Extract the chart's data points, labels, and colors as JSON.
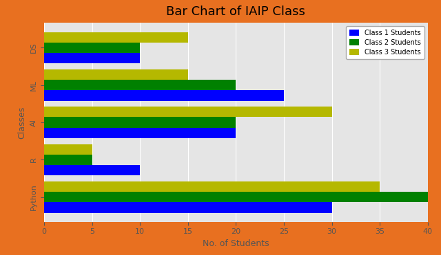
{
  "title": "Bar Chart of IAIP Class",
  "xlabel": "No. of Students",
  "ylabel": "Classes",
  "categories": [
    "Python",
    "R",
    "AI",
    "ML",
    "DS"
  ],
  "class1": [
    30,
    10,
    20,
    25,
    10
  ],
  "class2": [
    40,
    5,
    20,
    20,
    10
  ],
  "class3": [
    35,
    5,
    30,
    15,
    15
  ],
  "legend_labels": [
    "Class 1 Students",
    "Class 2 Students",
    "Class 3 Students"
  ],
  "colors": [
    "blue",
    "green",
    "#b5b800"
  ],
  "bar_height": 0.28,
  "xlim": [
    0,
    40
  ],
  "background_color": "#e5e5e5",
  "figure_border_color": "#e87020",
  "grid_color": "white",
  "title_fontsize": 13
}
